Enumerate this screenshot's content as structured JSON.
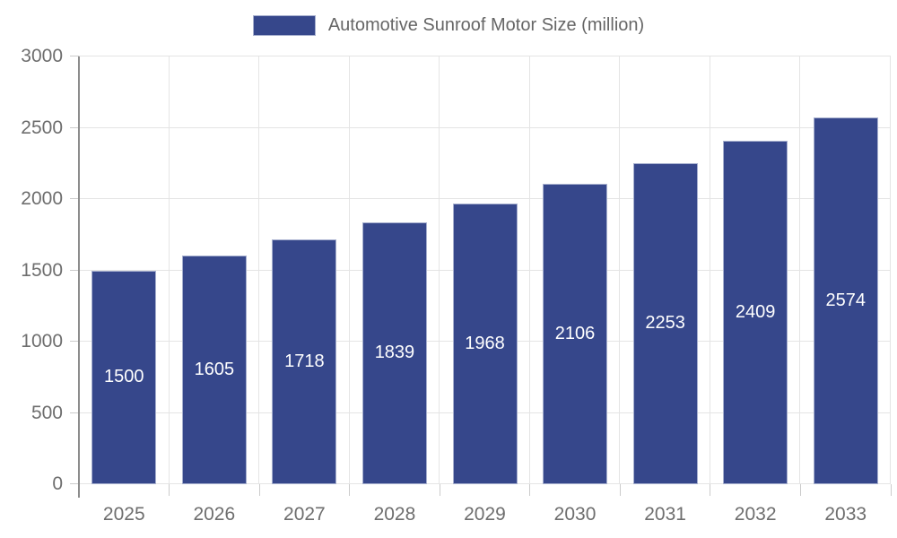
{
  "legend": {
    "label": "Automotive Sunroof Motor Size (million)"
  },
  "colors": {
    "bar": "#36478B",
    "bar_border": "#A6AFCE",
    "grid": "#E4E4E4",
    "axis": "#8C8C8C",
    "tick": "#CBCBCB",
    "label_text": "#6E6E6E",
    "legend_text": "#666666",
    "bar_label_text": "#FFFFFF",
    "background": "#FFFFFF"
  },
  "chart_data": {
    "type": "bar",
    "title": "Automotive Sunroof Motor Size (million)",
    "series_name": "Automotive Sunroof Motor Size (million)",
    "categories": [
      "2025",
      "2026",
      "2027",
      "2028",
      "2029",
      "2030",
      "2031",
      "2032",
      "2033"
    ],
    "values": [
      1500,
      1605,
      1718,
      1839,
      1968,
      2106,
      2253,
      2409,
      2574
    ],
    "xlabel": "",
    "ylabel": "",
    "ylim": [
      0,
      3000
    ],
    "yticks": [
      0,
      500,
      1000,
      1500,
      2000,
      2500,
      3000
    ],
    "grid": true,
    "legend_position": "top",
    "value_labels": "inside-center"
  }
}
